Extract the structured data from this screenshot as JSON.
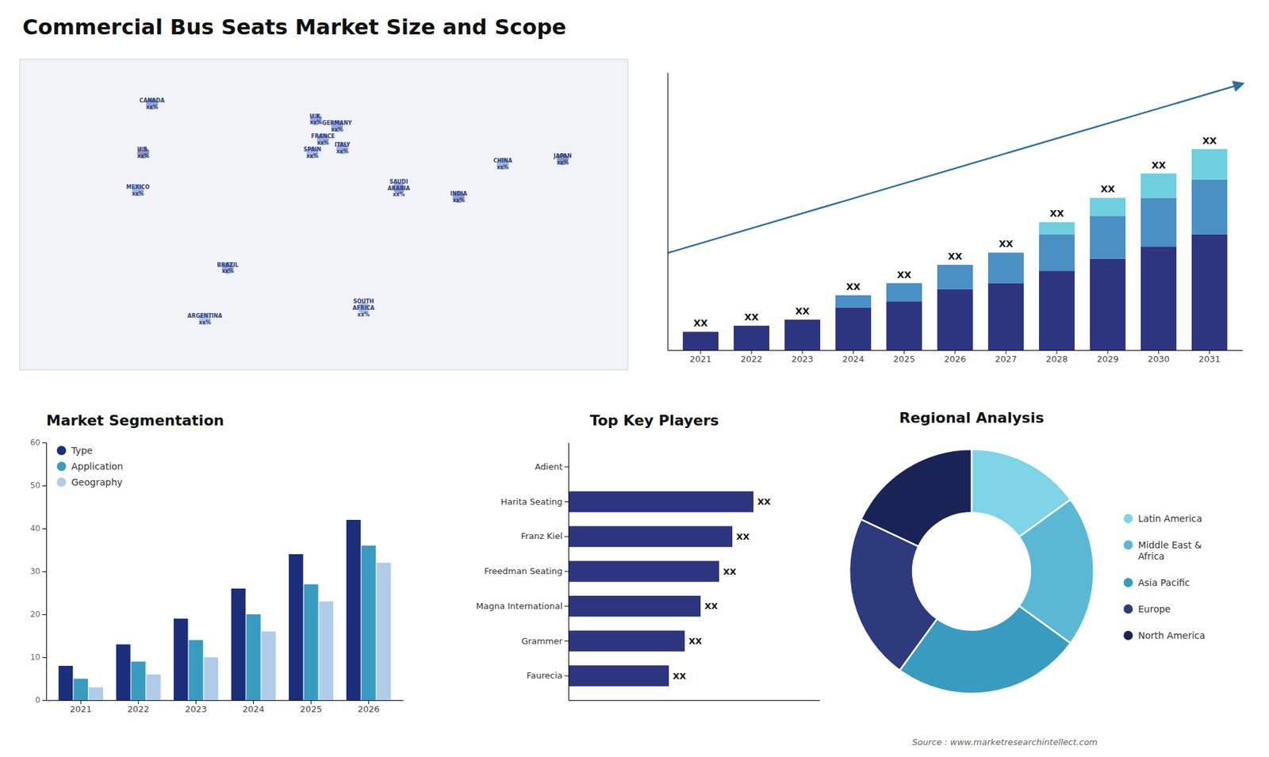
{
  "title": "Commercial Bus Seats Market Size and Scope",
  "annotations": [
    "Source : www.marketresearchintellect.com"
  ],
  "chart_data": [
    {
      "type": "scatter",
      "categories": [
        "CANADA\nxx%",
        "U.S.\nxx%",
        "MEXICO\nxx%",
        "BRAZIL\nxx%",
        "ARGENTINA\nxx%",
        "U.K.\nxx%",
        "FRANCE\nxx%",
        "SPAIN\nxx%",
        "GERMANY\nxx%",
        "ITALY\nxx%",
        "SAUDI\nARABIA\nxx%",
        "SOUTH\nAFRICA\nxx%",
        "CHINA\nxx%",
        "INDIA\nxx%",
        "JAPAN\nxx%"
      ],
      "x": [
        -95,
        -100,
        -103,
        -52,
        -65,
        -2,
        2,
        -4,
        10,
        13,
        45,
        25,
        104,
        79,
        138
      ],
      "values": [
        62,
        40,
        23,
        -12,
        -35,
        55,
        46,
        40,
        52,
        42,
        24,
        -30,
        35,
        20,
        37
      ],
      "colors": [
        "#3a5abf",
        "#2d3a8c",
        "#4a7abf",
        "#2d5aab",
        "#6a9ad4",
        "#3a5abf",
        "#4a6abf",
        "#5a7abf",
        "#3a5abf",
        "#4a6abf",
        "#3a5abf",
        "#5a8abf",
        "#4a7abf",
        "#2d4aab",
        "#1a3a8c"
      ],
      "xlim": [
        -170,
        175
      ],
      "ylim": [
        -58,
        82
      ],
      "tick_labels": false
    },
    {
      "type": "bar",
      "stacked": true,
      "categories": [
        "2021",
        "2022",
        "2023",
        "2024",
        "2025",
        "2026",
        "2027",
        "2028",
        "2029",
        "2030",
        "2031"
      ],
      "series": [
        {
          "color": "#2d3580",
          "values": [
            3,
            4,
            5,
            7,
            8,
            10,
            11,
            13,
            15,
            17,
            19
          ]
        },
        {
          "color": "#4a90c4",
          "values": [
            0,
            0,
            0,
            2,
            3,
            4,
            5,
            6,
            7,
            8,
            9
          ]
        },
        {
          "color": "#6ecfdf",
          "values": [
            0,
            0,
            0,
            0,
            0,
            0,
            0,
            2,
            3,
            4,
            5
          ]
        }
      ],
      "annotations": [
        "XX",
        "XX",
        "XX",
        "XX",
        "XX",
        "XX",
        "XX",
        "XX",
        "XX",
        "XX",
        "XX"
      ],
      "ylim": [
        0,
        45.54
      ],
      "tick_labels": "x"
    },
    {
      "type": "bar",
      "title": "Market Segmentation",
      "categories": [
        "2021",
        "2022",
        "2023",
        "2024",
        "2025",
        "2026"
      ],
      "series": [
        {
          "name": "Type",
          "color": "#1a2e7a",
          "values": [
            8,
            13,
            19,
            26,
            34,
            42
          ]
        },
        {
          "name": "Application",
          "color": "#3a9bc0",
          "values": [
            5,
            9,
            14,
            20,
            27,
            36
          ]
        },
        {
          "name": "Geography",
          "color": "#b0cce8",
          "values": [
            3,
            6,
            10,
            16,
            23,
            32
          ]
        }
      ],
      "ylim": [
        0,
        60
      ],
      "yticks": [
        0,
        10,
        20,
        30,
        40,
        50,
        60
      ],
      "legend": "top-left"
    },
    {
      "type": "bar",
      "orientation": "horizontal",
      "title": "Top Key Players",
      "categories": [
        "Adient",
        "Harita Seating",
        "Franz Kiel",
        "Freedman Seating",
        "Magna International",
        "Grammer",
        "Faurecia"
      ],
      "values": [
        0,
        70,
        62,
        57,
        50,
        44,
        38
      ],
      "value_labels": [
        null,
        "XX",
        "XX",
        "XX",
        "XX",
        "XX",
        "XX"
      ],
      "color": "#2d3580",
      "xlim": [
        0,
        95
      ],
      "tick_labels": "y"
    },
    {
      "type": "donut",
      "title": "Regional Analysis",
      "categories": [
        "Latin America",
        "Middle East &\nAfrica",
        "Asia Pacific",
        "Europe",
        "North America"
      ],
      "values": [
        15,
        20,
        25,
        22,
        18
      ],
      "colors": [
        "#7fd4e8",
        "#5bb8d4",
        "#3a9bc0",
        "#2d3a7c",
        "#1a2356"
      ],
      "legend": "right"
    }
  ]
}
